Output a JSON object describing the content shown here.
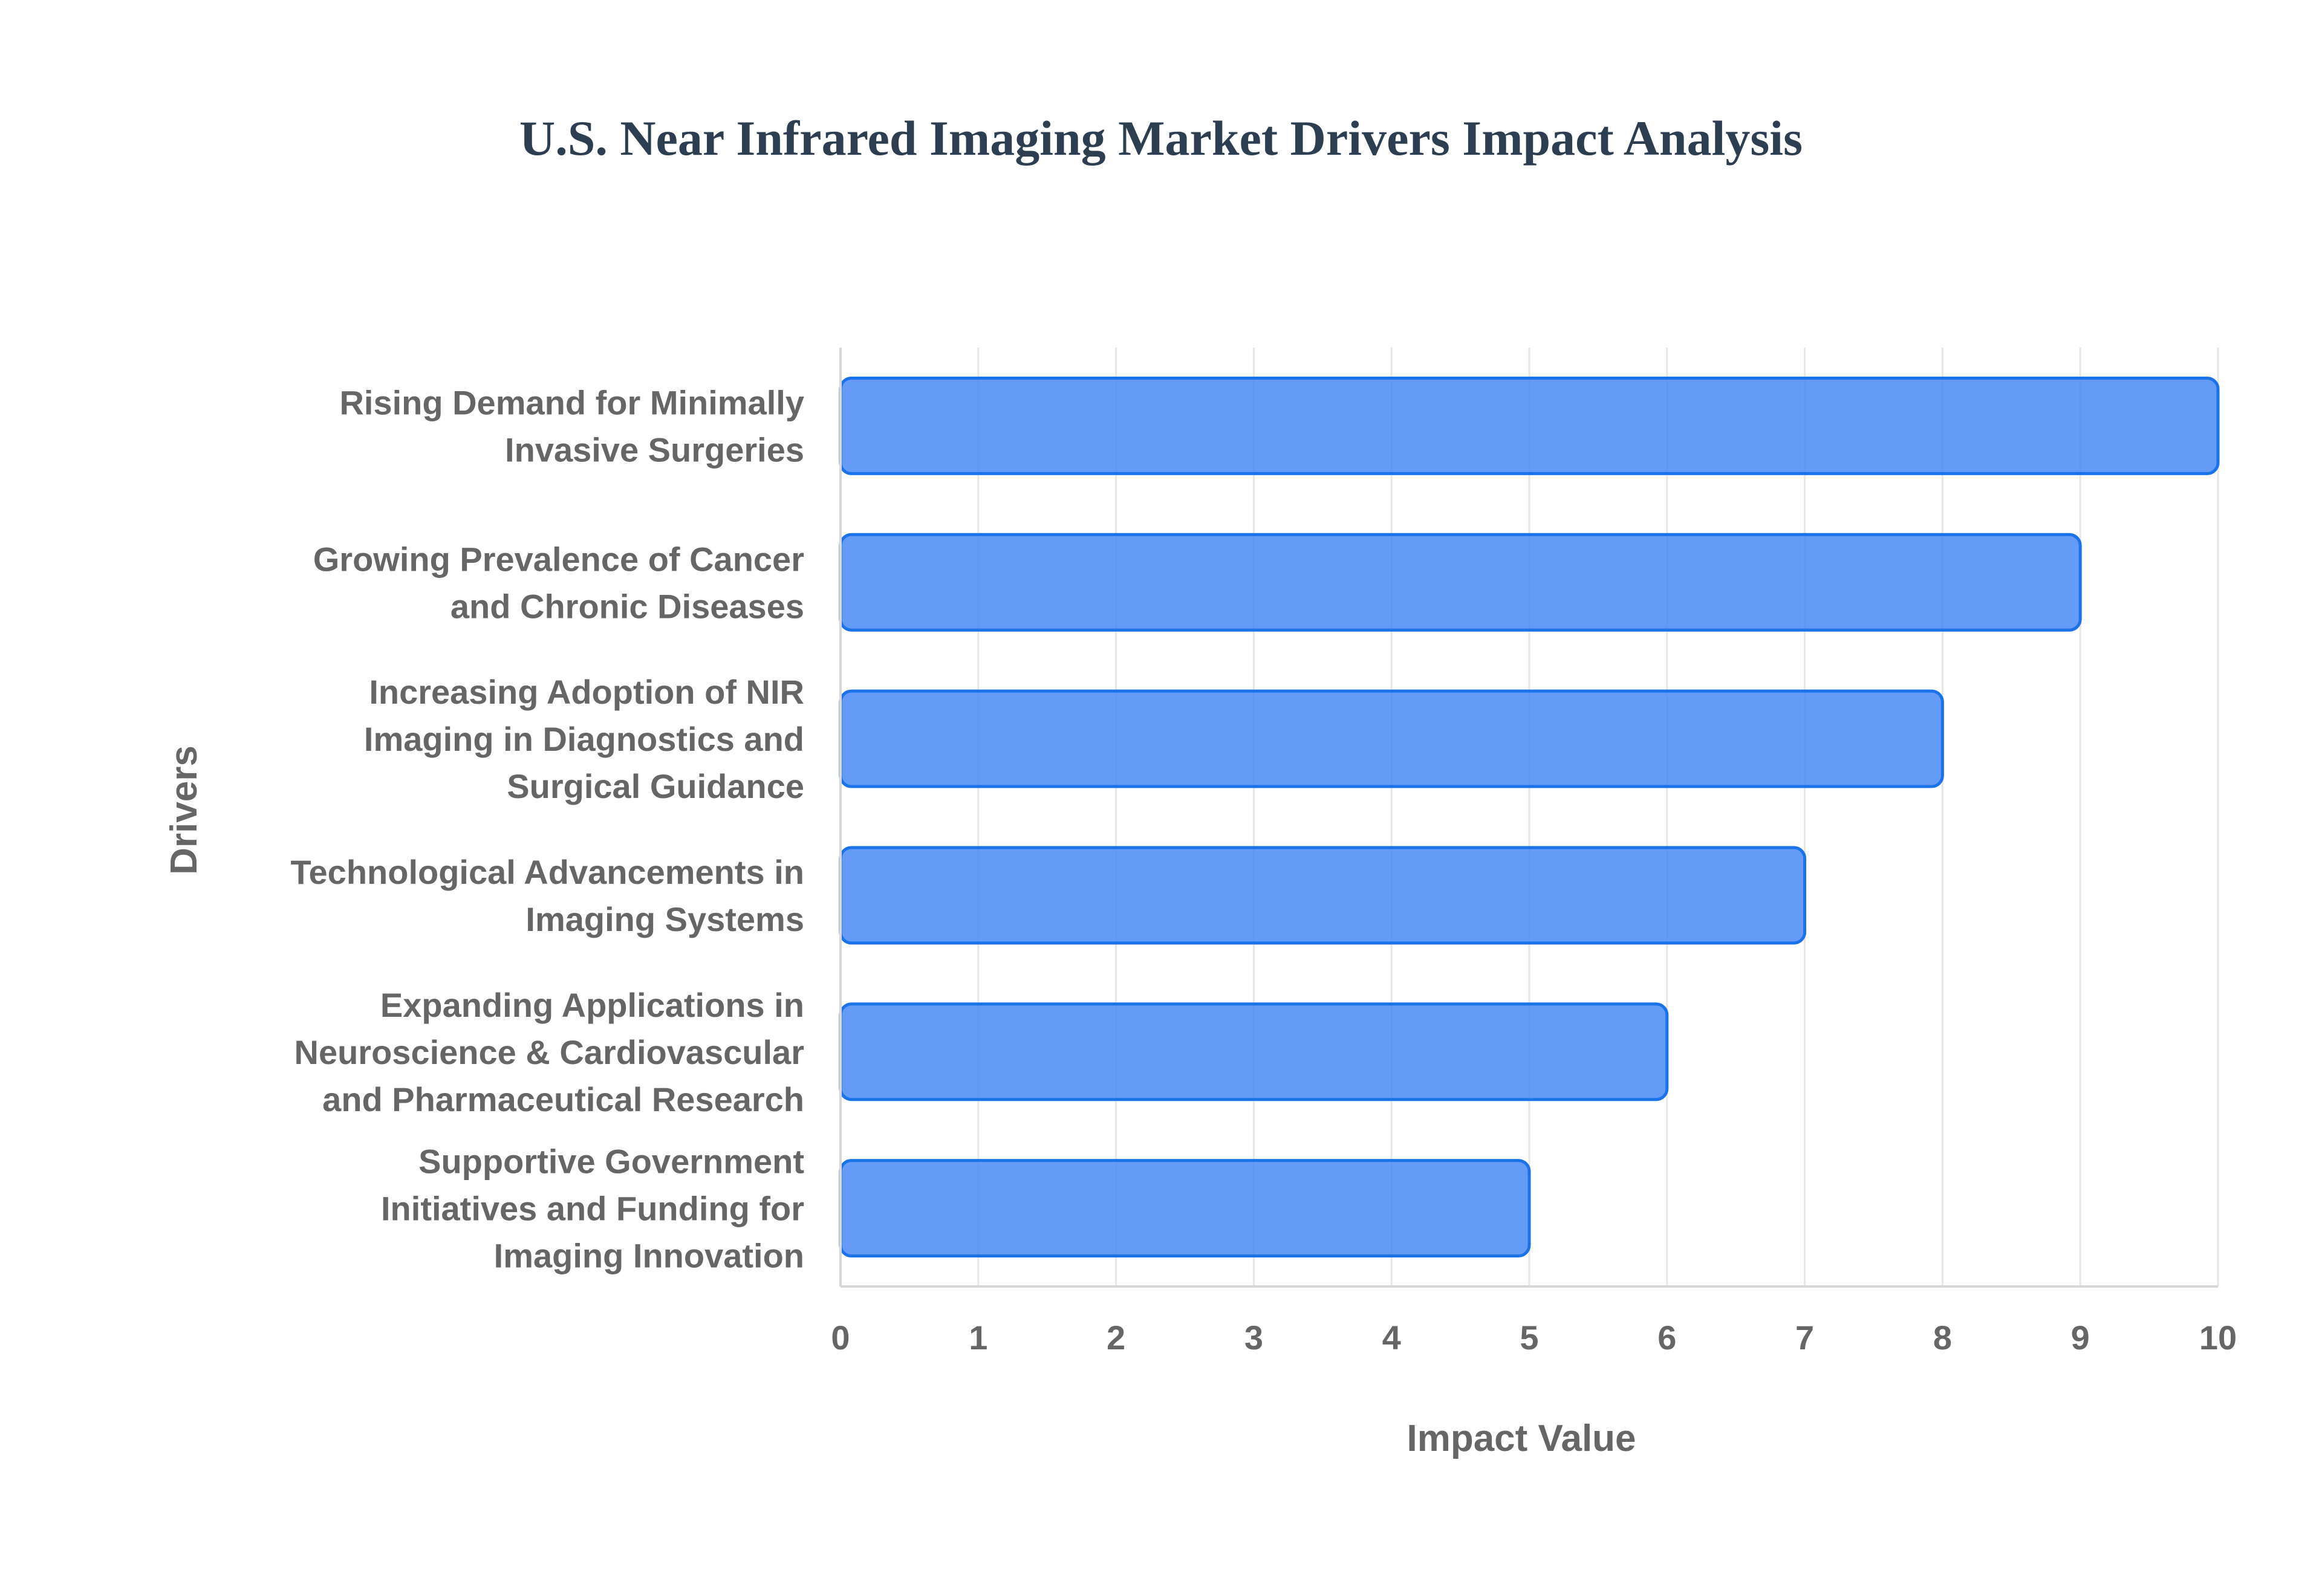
{
  "chart_data": {
    "type": "bar",
    "orientation": "horizontal",
    "title": "U.S. Near Infrared Imaging Market Drivers Impact Analysis",
    "xlabel": "Impact Value",
    "ylabel": "Drivers",
    "categories": [
      [
        "Rising Demand for Minimally",
        "Invasive Surgeries"
      ],
      [
        "Growing Prevalence of Cancer",
        "and Chronic Diseases"
      ],
      [
        "Increasing Adoption of NIR",
        "Imaging in Diagnostics and",
        "Surgical Guidance"
      ],
      [
        "Technological Advancements in",
        "Imaging Systems"
      ],
      [
        "Expanding Applications in",
        "Neuroscience & Cardiovascular",
        "and Pharmaceutical Research"
      ],
      [
        "Supportive Government",
        "Initiatives and Funding for",
        "Imaging Innovation"
      ]
    ],
    "values": [
      10,
      9,
      8,
      7,
      6,
      5
    ],
    "xlim": [
      0,
      10
    ],
    "xticks": [
      "0",
      "1",
      "2",
      "3",
      "4",
      "5",
      "6",
      "7",
      "8",
      "9",
      "10"
    ],
    "grid": true,
    "legend": "none",
    "colors": {
      "bar_fill": "#4285f4",
      "bar_stroke": "#1a73e8",
      "grid": "#e6e6e6",
      "axis": "#d8d8d8",
      "title": "#2c3e50",
      "label": "#666666"
    }
  }
}
